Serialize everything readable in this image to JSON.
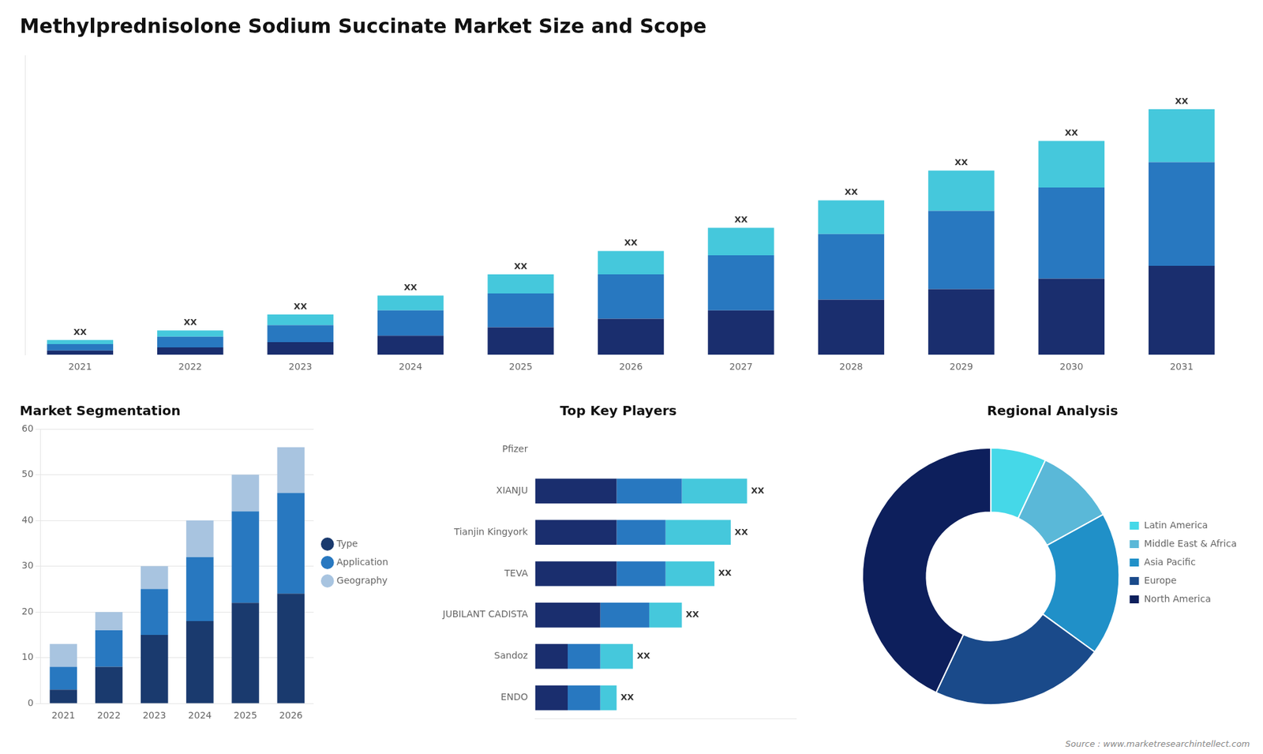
{
  "chart_data": [
    {
      "type": "bar",
      "title": "Methylprednisolone Sodium Succinate Market Size and Scope",
      "stacked": true,
      "categories": [
        "2021",
        "2022",
        "2023",
        "2024",
        "2025",
        "2026",
        "2027",
        "2028",
        "2029",
        "2030",
        "2031"
      ],
      "series": [
        {
          "color": "#1a2e6e",
          "values": [
            2,
            3.5,
            6,
            9,
            13,
            17,
            21,
            26,
            31,
            36,
            42
          ]
        },
        {
          "color": "#2878c0",
          "values": [
            3,
            5,
            8,
            12,
            16,
            21,
            26,
            31,
            37,
            43,
            49
          ]
        },
        {
          "color": "#45c8dc",
          "values": [
            2,
            3,
            5,
            7,
            9,
            11,
            13,
            16,
            19,
            22,
            25
          ]
        }
      ],
      "ylim": [
        0,
        141.52
      ],
      "grid": false,
      "tick_labels": "x",
      "data_labels": true,
      "value_labels": [
        "XX",
        "XX",
        "XX",
        "XX",
        "XX",
        "XX",
        "XX",
        "XX",
        "XX",
        "XX",
        "XX"
      ]
    },
    {
      "type": "bar",
      "title": "Market Segmentation",
      "stacked": true,
      "categories": [
        "2021",
        "2022",
        "2023",
        "2024",
        "2025",
        "2026"
      ],
      "series": [
        {
          "name": "Type",
          "color": "#1a3a6e",
          "values": [
            3,
            8,
            15,
            18,
            22,
            24
          ]
        },
        {
          "name": "Application",
          "color": "#2878c0",
          "values": [
            5,
            8,
            10,
            14,
            20,
            22
          ]
        },
        {
          "name": "Geography",
          "color": "#a8c4e0",
          "values": [
            5,
            4,
            5,
            8,
            8,
            10
          ]
        }
      ],
      "ylim": [
        0,
        60
      ],
      "yticks": [
        0,
        10,
        20,
        30,
        40,
        50,
        60
      ],
      "grid": true,
      "legend": "right"
    },
    {
      "type": "bar",
      "title": "Top Key Players",
      "orientation": "horizontal",
      "stacked": true,
      "categories": [
        "Pfizer",
        "XIANJU",
        "Tianjin Kingyork",
        "TEVA",
        "JUBILANT CADISTA",
        "Sandoz",
        "ENDO"
      ],
      "series": [
        {
          "color": "#1a2e6e",
          "values": [
            0,
            5,
            5,
            5,
            4,
            2,
            2
          ]
        },
        {
          "color": "#2878c0",
          "values": [
            0,
            4,
            3,
            3,
            3,
            2,
            2
          ]
        },
        {
          "color": "#45c8dc",
          "values": [
            0,
            4,
            4,
            3,
            2,
            2,
            1
          ]
        }
      ],
      "xlim": [
        0,
        16
      ],
      "grid": false,
      "tick_labels": "y",
      "data_labels": true,
      "value_labels": [
        null,
        "XX",
        "XX",
        "XX",
        "XX",
        "XX",
        "XX"
      ]
    },
    {
      "type": "doughnut",
      "title": "Regional Analysis",
      "categories": [
        "Latin America",
        "Middle East &\nAfrica",
        "Asia Pacific",
        "Europe",
        "North America"
      ],
      "values": [
        7,
        10,
        18,
        22,
        43
      ],
      "colors": [
        "#45d8e8",
        "#5ab8d8",
        "#2090c8",
        "#1a4a8a",
        "#0d1f5c"
      ],
      "legend": "right",
      "annotations": [
        "Source : www.marketresearchintellect.com"
      ]
    }
  ]
}
